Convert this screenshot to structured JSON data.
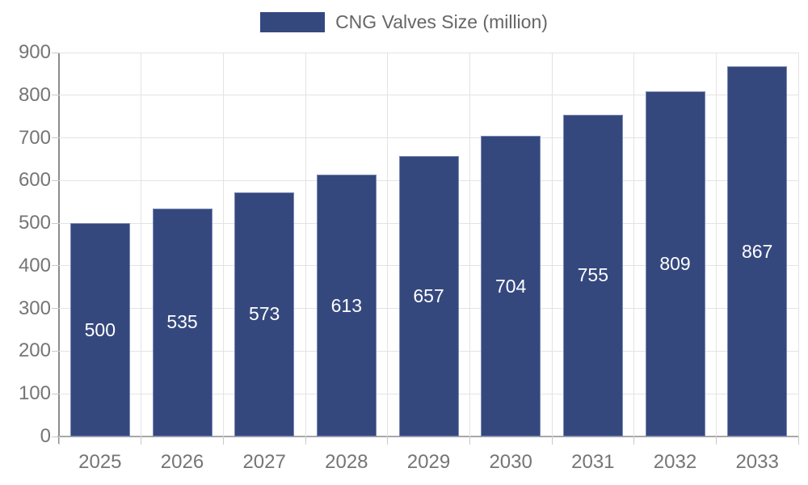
{
  "chart_data": {
    "type": "bar",
    "legend_label": "CNG Valves Size (million)",
    "legend_position": "top",
    "categories": [
      "2025",
      "2026",
      "2027",
      "2028",
      "2029",
      "2030",
      "2031",
      "2032",
      "2033"
    ],
    "values": [
      500,
      535,
      573,
      613,
      657,
      704,
      755,
      809,
      867
    ],
    "yticks": [
      0,
      100,
      200,
      300,
      400,
      500,
      600,
      700,
      800,
      900
    ],
    "ylim": [
      0,
      900
    ],
    "grid": true,
    "value_labels_inside_bars": true,
    "colors": {
      "bar": "#35487E",
      "bar_edge": "#7b89b3",
      "value_label": "#ffffff",
      "axis_text": "#757575",
      "legend_text": "#666666",
      "gridline": "#e3e3e3",
      "y_axis_line": "#8c8c8c",
      "x_axis_line": "#a8a8a8",
      "tick": "#c9c9c9",
      "background": "#ffffff"
    }
  }
}
